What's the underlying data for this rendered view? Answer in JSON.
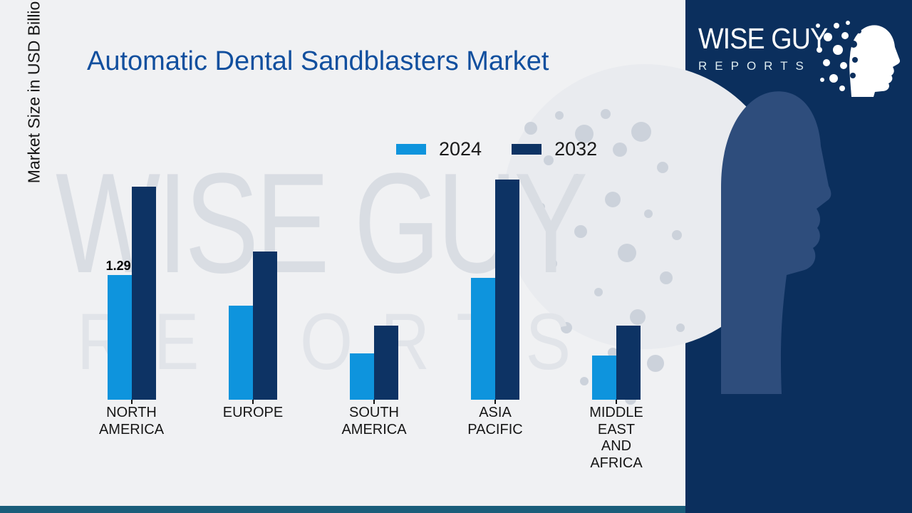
{
  "header": {
    "title": "Automatic Dental Sandblasters Market"
  },
  "logo": {
    "line1": "WISE GUY",
    "line2": "REPORTS"
  },
  "watermark": {
    "line1": "WISE GUY",
    "line2": "REPORTS"
  },
  "legend": {
    "items": [
      {
        "label": "2024",
        "color": "#0e94dd"
      },
      {
        "label": "2032",
        "color": "#0d3364"
      }
    ]
  },
  "colors": {
    "title": "#114f9e",
    "panel_navy": "#0b2f5d",
    "bottom_bar_teal": "#1a5d7a",
    "background": "#f0f1f3",
    "series_2024": "#0e94dd",
    "series_2032": "#0d3364"
  },
  "chart_data": {
    "type": "bar",
    "title": "Automatic Dental Sandblasters Market",
    "xlabel": "",
    "ylabel": "Market Size in USD Billion",
    "categories": [
      "NORTH AMERICA",
      "EUROPE",
      "SOUTH AMERICA",
      "ASIA PACIFIC",
      "MIDDLE EAST AND AFRICA"
    ],
    "category_lines": [
      [
        "NORTH",
        "AMERICA"
      ],
      [
        "EUROPE"
      ],
      [
        "SOUTH",
        "AMERICA"
      ],
      [
        "ASIA",
        "PACIFIC"
      ],
      [
        "MIDDLE",
        "EAST",
        "AND",
        "AFRICA"
      ]
    ],
    "series": [
      {
        "name": "2024",
        "color": "#0e94dd",
        "values": [
          1.29,
          0.97,
          0.48,
          1.26,
          0.46
        ]
      },
      {
        "name": "2032",
        "color": "#0d3364",
        "values": [
          2.2,
          1.53,
          0.77,
          2.28,
          0.77
        ]
      }
    ],
    "value_labels": [
      {
        "series": "2024",
        "category_index": 0,
        "text": "1.29"
      }
    ],
    "ylim": [
      0,
      2.5
    ],
    "grid": false,
    "axis_line": false,
    "legend_position": "top"
  }
}
